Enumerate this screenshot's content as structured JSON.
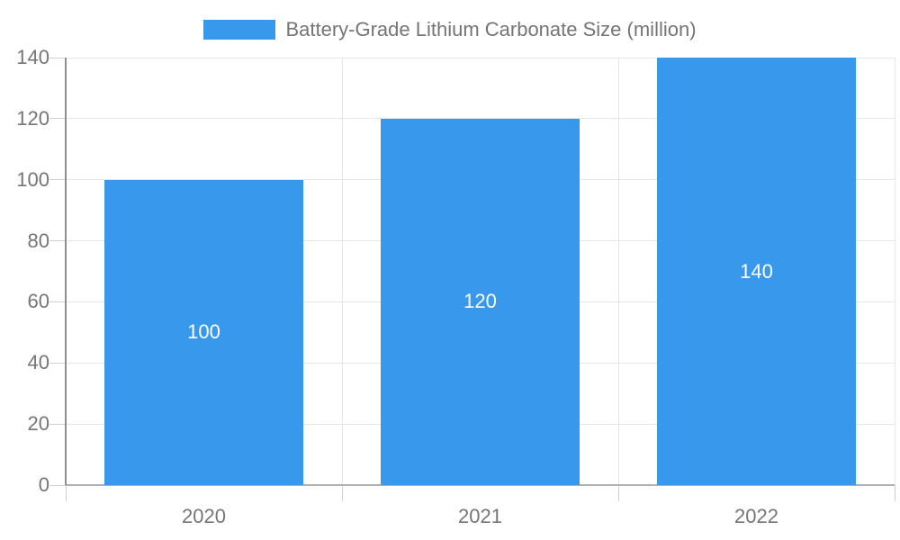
{
  "chart_data": {
    "type": "bar",
    "title": "",
    "legend": {
      "label": "Battery-Grade Lithium Carbonate Size (million)",
      "position": "top-center"
    },
    "categories": [
      "2020",
      "2021",
      "2022"
    ],
    "values": [
      100,
      120,
      140
    ],
    "bar_labels": [
      "100",
      "120",
      "140"
    ],
    "xlabel": "",
    "ylabel": "",
    "ylim": [
      0,
      140
    ],
    "yticks": [
      0,
      20,
      40,
      60,
      80,
      100,
      120,
      140
    ],
    "grid": true,
    "legend_position": "top-center",
    "colors": {
      "bar": "#3899EC",
      "text": "#757575",
      "bar_label_text": "#FFFFFF",
      "gridline": "#E6E6E6",
      "axis_line": "#8F8F8F",
      "baseline": "#B0B0B0",
      "tick": "#CFCFCF",
      "background": "#FFFFFF"
    }
  }
}
